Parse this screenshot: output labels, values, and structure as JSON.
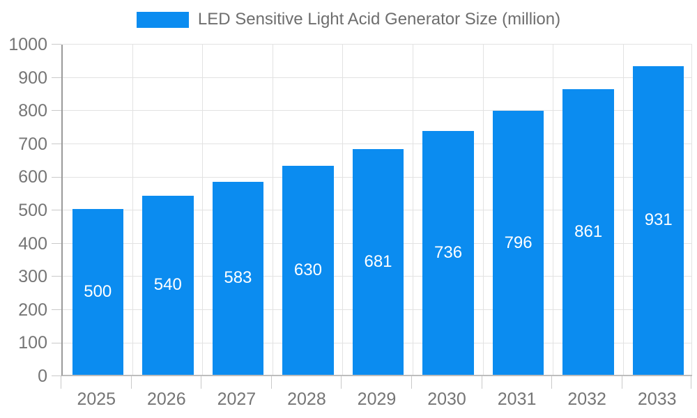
{
  "legend": {
    "position": "top",
    "items": [
      {
        "label": "LED Sensitive Light Acid Generator Size (million)",
        "color": "#0b8cf0"
      }
    ]
  },
  "chart_data": {
    "type": "bar",
    "title": "LED Sensitive Light Acid Generator Size (million)",
    "series_name": "LED Sensitive Light Acid Generator Size (million)",
    "categories": [
      "2025",
      "2026",
      "2027",
      "2028",
      "2029",
      "2030",
      "2031",
      "2032",
      "2033"
    ],
    "values": [
      500,
      540,
      583,
      630,
      681,
      736,
      796,
      861,
      931
    ],
    "xlabel": "",
    "ylabel": "",
    "ylim": [
      0,
      1000
    ],
    "ytick_step": 100,
    "ytick_labels": [
      "0",
      "100",
      "200",
      "300",
      "400",
      "500",
      "600",
      "700",
      "800",
      "900",
      "1000"
    ],
    "grid": true,
    "legend_position": "top",
    "bar_color": "#0b8cf0",
    "value_label_color": "#ffffff",
    "axis_label_color": "#757575",
    "value_labels_shown": true
  }
}
